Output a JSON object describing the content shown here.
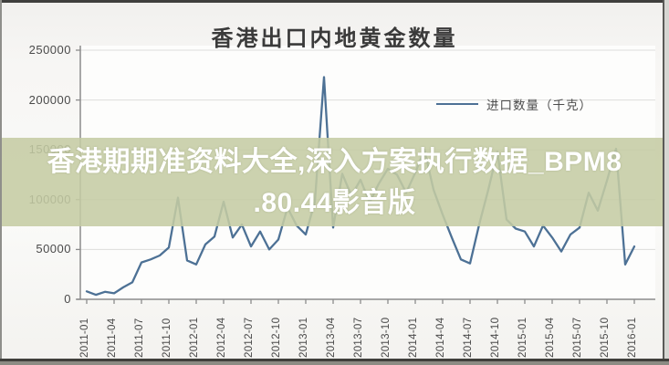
{
  "overlay": {
    "line1": "香港期期准资料大全,深入方案执行数据_BPM8",
    "line2": ".80.44影音版"
  },
  "chart_data": {
    "type": "line",
    "title": "香港出口内地黄金数量",
    "legend": [
      {
        "name": "进口数量（千克）",
        "color": "#4d7195",
        "position": "right-top"
      }
    ],
    "xlabel": "",
    "ylabel": "",
    "ylim": [
      0,
      250000
    ],
    "grid": true,
    "y_ticks": [
      0,
      50000,
      100000,
      150000,
      200000,
      250000
    ],
    "y_tick_labels": [
      "0",
      "50000",
      "100000",
      "150000",
      "200000",
      "250000"
    ],
    "x_tick_labels": [
      "2011-01",
      "2011-04",
      "2011-07",
      "2011-10",
      "2012-01",
      "2012-04",
      "2012-07",
      "2012-10",
      "2013-01",
      "2013-04",
      "2013-07",
      "2013-10",
      "2014-01",
      "2014-04",
      "2014-07",
      "2014-10",
      "2015-01",
      "2015-04",
      "2015-07",
      "2015-10",
      "2016-01"
    ],
    "categories": [
      "2011-01",
      "2011-02",
      "2011-03",
      "2011-04",
      "2011-05",
      "2011-06",
      "2011-07",
      "2011-08",
      "2011-09",
      "2011-10",
      "2011-11",
      "2011-12",
      "2012-01",
      "2012-02",
      "2012-03",
      "2012-04",
      "2012-05",
      "2012-06",
      "2012-07",
      "2012-08",
      "2012-09",
      "2012-10",
      "2012-11",
      "2012-12",
      "2013-01",
      "2013-02",
      "2013-03",
      "2013-04",
      "2013-05",
      "2013-06",
      "2013-07",
      "2013-08",
      "2013-09",
      "2013-10",
      "2013-11",
      "2013-12",
      "2014-01",
      "2014-02",
      "2014-03",
      "2014-04",
      "2014-05",
      "2014-06",
      "2014-07",
      "2014-08",
      "2014-09",
      "2014-10",
      "2014-11",
      "2014-12",
      "2015-01",
      "2015-02",
      "2015-03",
      "2015-04",
      "2015-05",
      "2015-06",
      "2015-07",
      "2015-08",
      "2015-09",
      "2015-10",
      "2015-11",
      "2015-12",
      "2016-01"
    ],
    "series": [
      {
        "name": "进口数量（千克）",
        "color": "#4d7195",
        "values": [
          8000,
          4500,
          7500,
          6000,
          12000,
          17000,
          37000,
          40000,
          44000,
          52000,
          102000,
          39000,
          35000,
          55000,
          63000,
          98000,
          62000,
          75000,
          53000,
          68000,
          50000,
          60000,
          92000,
          74000,
          65000,
          98000,
          223000,
          72000,
          126000,
          104000,
          120000,
          97000,
          116000,
          131000,
          125000,
          107000,
          127000,
          150000,
          110000,
          85000,
          62000,
          40000,
          36000,
          75000,
          110000,
          148000,
          80000,
          71000,
          68000,
          53000,
          74000,
          62000,
          48000,
          65000,
          72000,
          107000,
          89000,
          119000,
          151000,
          35000,
          53000
        ]
      }
    ],
    "style": {
      "band_color": "#c4cba3",
      "grid_color": "#dddddb",
      "axis_color": "#8c8c8c",
      "plot_bg": "#fdfdfc"
    }
  }
}
